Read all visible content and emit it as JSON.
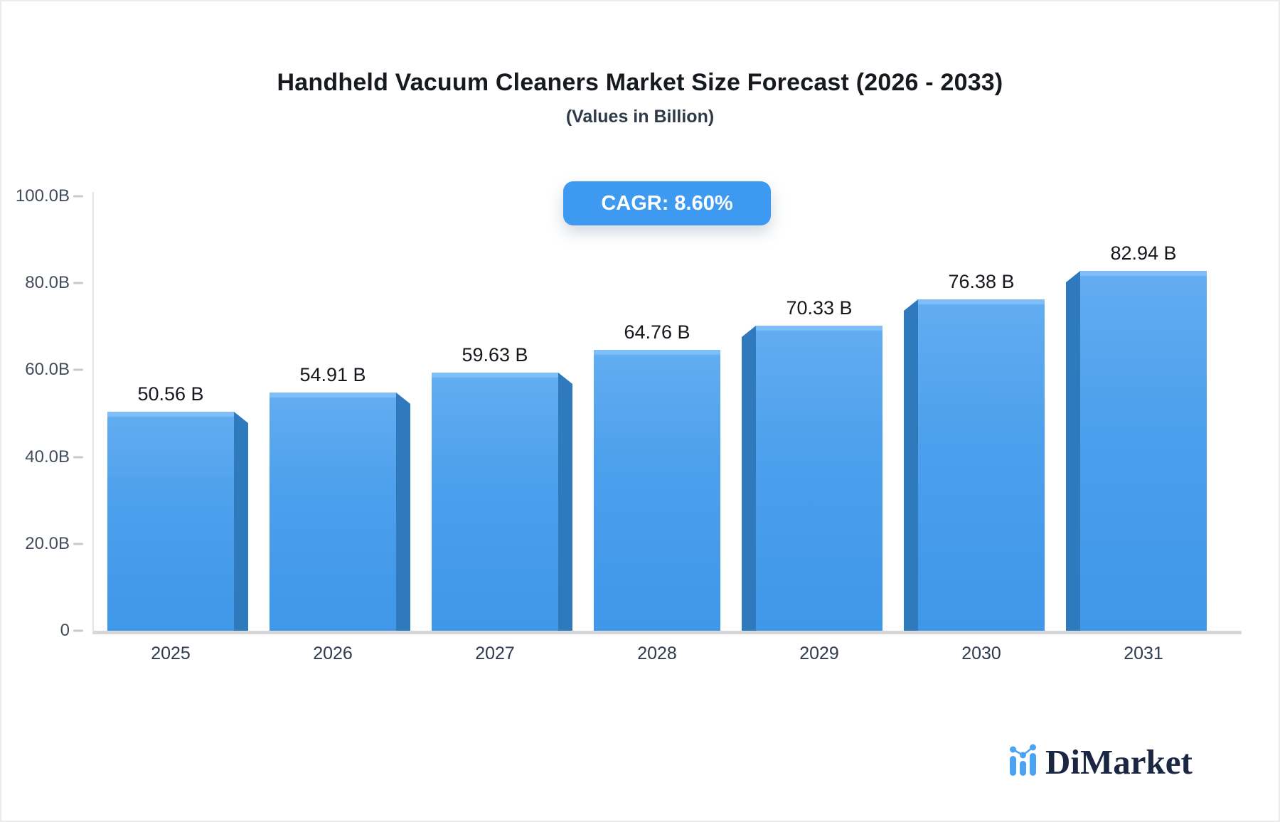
{
  "header": {
    "title": "Handheld Vacuum Cleaners Market Size Forecast (2026 - 2033)",
    "subtitle": "(Values in Billion)",
    "cagr_badge": "CAGR: 8.60%"
  },
  "chart_data": {
    "type": "bar",
    "title": "Handheld Vacuum Cleaners Market Size Forecast (2026 - 2033)",
    "subtitle": "(Values in Billion)",
    "annotation": "CAGR: 8.60%",
    "categories": [
      "2025",
      "2026",
      "2027",
      "2028",
      "2029",
      "2030",
      "2031"
    ],
    "values": [
      50.56,
      54.91,
      59.63,
      64.76,
      70.33,
      76.38,
      82.94
    ],
    "value_labels": [
      "50.56 B",
      "54.91 B",
      "59.63 B",
      "64.76 B",
      "70.33 B",
      "76.38 B",
      "82.94 B"
    ],
    "xlabel": "",
    "ylabel": "",
    "ylim": [
      0,
      100
    ],
    "yticks": [
      {
        "value": 0,
        "label": "0"
      },
      {
        "value": 20,
        "label": "20.0B"
      },
      {
        "value": 40,
        "label": "40.0B"
      },
      {
        "value": 60,
        "label": "60.0B"
      },
      {
        "value": 80,
        "label": "80.0B"
      },
      {
        "value": 100,
        "label": "100.0B"
      }
    ],
    "grid": false,
    "legend": false
  },
  "footer": {
    "brand": "DiMarket",
    "logo_icon": "bar-chart-icon"
  },
  "colors": {
    "bar_fill": "#4FA0EC",
    "bar_side": "#2F7ABD",
    "badge_bg": "#3E9AF0",
    "badge_text": "#FFFFFF",
    "axis_line": "#D5D7DA",
    "logo_blue": "#4BA3F2",
    "logo_text": "#1A2642"
  }
}
